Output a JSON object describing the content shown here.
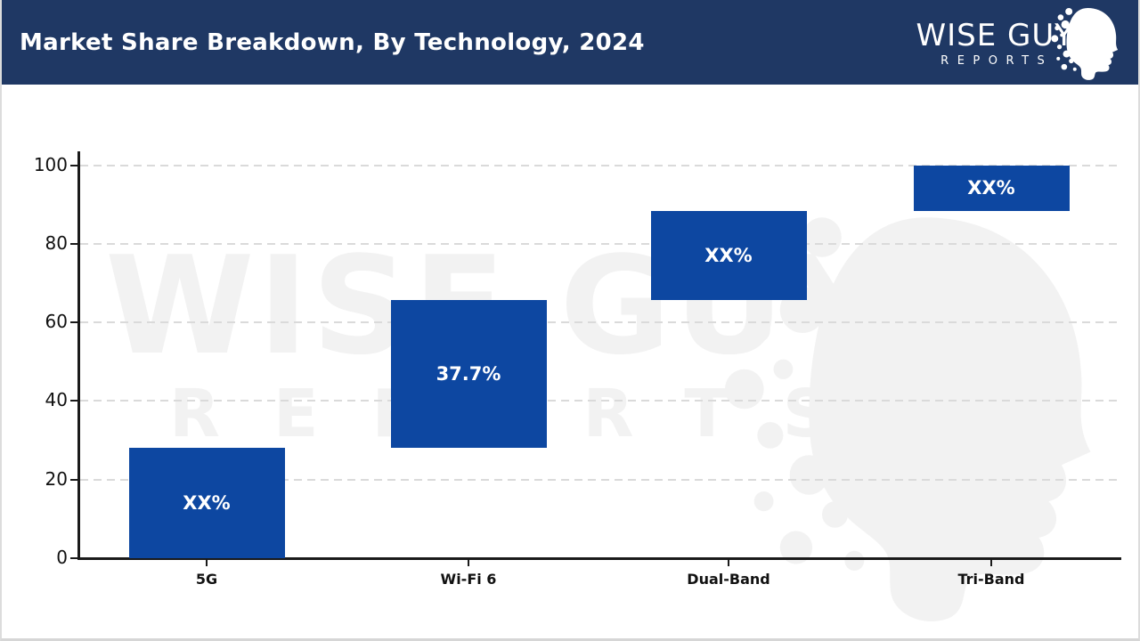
{
  "header": {
    "title": "Market Share Breakdown, By Technology, 2024",
    "background_color": "#1f3864",
    "logo": {
      "line1": "WISE GUY",
      "line2": "REPORTS",
      "icon": "dotted-head-profile"
    }
  },
  "watermark": {
    "line1": "WISE GUY",
    "line2": "REPORTS",
    "icon": "dotted-head-profile",
    "color": "#f2f2f2"
  },
  "chart_data": {
    "type": "bar",
    "subtype": "floating-waterfall",
    "title": "Market Share Breakdown, By Technology, 2024",
    "categories": [
      "5G",
      "Wi-Fi 6",
      "Dual-Band",
      "Tri-Band"
    ],
    "segments": [
      {
        "category": "5G",
        "start": 0,
        "end": 28,
        "value_label": "XX%"
      },
      {
        "category": "Wi-Fi 6",
        "start": 28,
        "end": 65.7,
        "value_label": "37.7%"
      },
      {
        "category": "Dual-Band",
        "start": 65.7,
        "end": 88.4,
        "value_label": "XX%"
      },
      {
        "category": "Tri-Band",
        "start": 88.4,
        "end": 100,
        "value_label": "XX%"
      }
    ],
    "ylim": [
      0,
      100
    ],
    "yticks": [
      0,
      20,
      40,
      60,
      80,
      100
    ],
    "xlabel": "",
    "ylabel": "",
    "grid": "horizontal-dashed",
    "legend": "none",
    "bar_color": "#0d47a1",
    "bar_label_color": "#ffffff",
    "axis_color": "#1a1a1a",
    "grid_color": "#dadada"
  }
}
